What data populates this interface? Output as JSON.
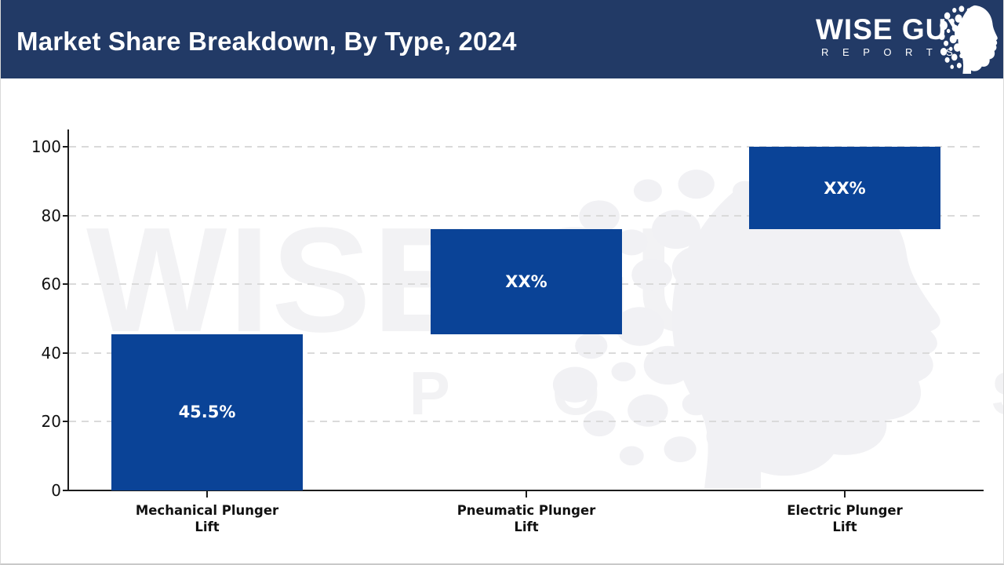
{
  "header": {
    "title": "Market Share Breakdown, By Type, 2024",
    "logo_line1": "WISE GUY",
    "logo_line2": "R E P O R T S"
  },
  "watermark": {
    "line1": "WISE GUY",
    "line2": "R E P O R T S"
  },
  "chart_data": {
    "type": "bar",
    "variant": "waterfall",
    "title": "Market Share Breakdown, By Type, 2024",
    "categories": [
      "Mechanical Plunger\nLift",
      "Pneumatic Plunger\nLift",
      "Electric Plunger\nLift"
    ],
    "segments": [
      {
        "category": "Mechanical Plunger Lift",
        "start": 0,
        "end": 45.5,
        "label": "45.5%"
      },
      {
        "category": "Pneumatic Plunger Lift",
        "start": 45.5,
        "end": 76,
        "label": "XX%"
      },
      {
        "category": "Electric Plunger Lift",
        "start": 76,
        "end": 100,
        "label": "XX%"
      }
    ],
    "yticks": [
      0,
      20,
      40,
      60,
      80,
      100
    ],
    "ylim": [
      0,
      105
    ],
    "xlabel": "",
    "ylabel": "",
    "legend": "none",
    "grid": "horizontal-dashed",
    "bar_color": "#0a4397",
    "bar_label_color": "#ffffff"
  },
  "colors": {
    "header_bg": "#223a66",
    "bar": "#0a4397",
    "axis": "#1c1c1c",
    "gridline": "#dadada",
    "watermark": "#f2f2f4"
  }
}
